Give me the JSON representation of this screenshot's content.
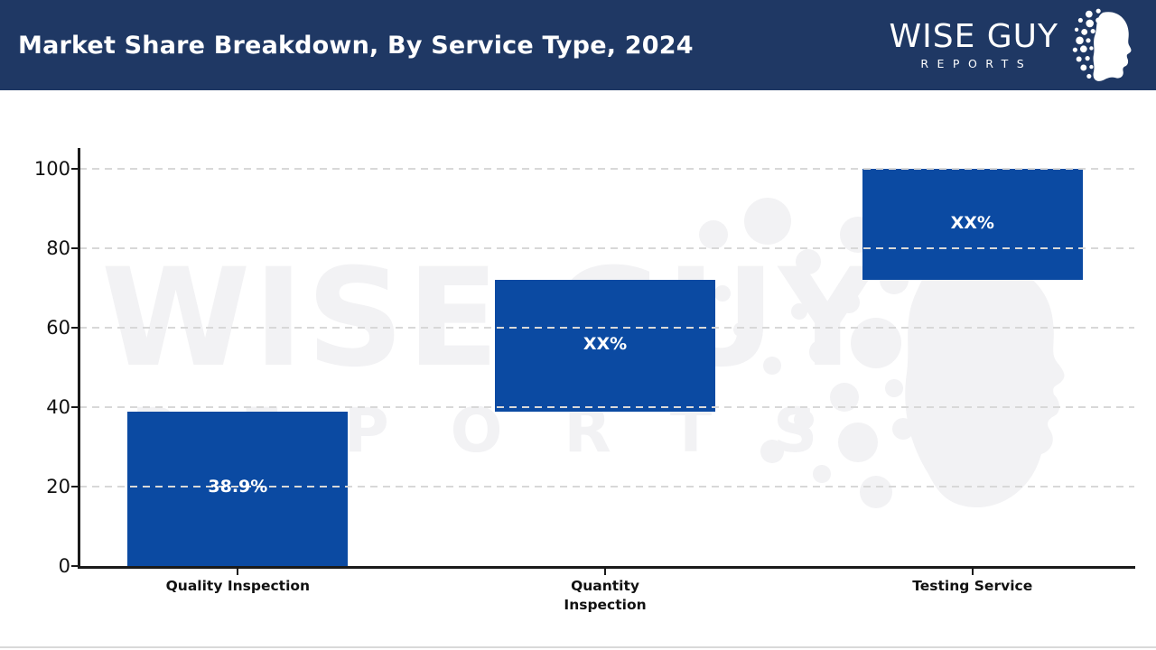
{
  "header": {
    "title": "Market Share Breakdown, By Service Type, 2024",
    "logo": {
      "line1": "WISE GUY",
      "line2": "REPORTS",
      "icon": "dotted-face-profile"
    }
  },
  "watermark": {
    "line1": "WISE GUY",
    "line2": "REPORTS",
    "icon": "dotted-face-profile"
  },
  "chart_data": {
    "type": "bar",
    "subtype": "stacked-waterfall",
    "title": "Market Share Breakdown, By Service Type, 2024",
    "categories": [
      "Quality Inspection",
      "Quantity\nInspection",
      "Testing Service"
    ],
    "bars": [
      {
        "category": "Quality Inspection",
        "start": 0,
        "end": 38.9,
        "label": "38.9%"
      },
      {
        "category": "Quantity Inspection",
        "start": 38.9,
        "end": 72,
        "label": "XX%"
      },
      {
        "category": "Testing Service",
        "start": 72,
        "end": 100,
        "label": "XX%"
      }
    ],
    "y_ticks": [
      0,
      20,
      40,
      60,
      80,
      100
    ],
    "ylim": [
      0,
      100
    ],
    "xlabel": "",
    "ylabel": "",
    "grid": "horizontal-dashed",
    "legend": "none",
    "colors": {
      "header_bg": "#1f3864",
      "bar": "#0b4aa2",
      "gridline": "#d8d8d8",
      "axis": "#1a1a1a",
      "watermark": "#f2f2f4",
      "title_text": "#ffffff",
      "bar_label_text": "#ffffff"
    }
  }
}
